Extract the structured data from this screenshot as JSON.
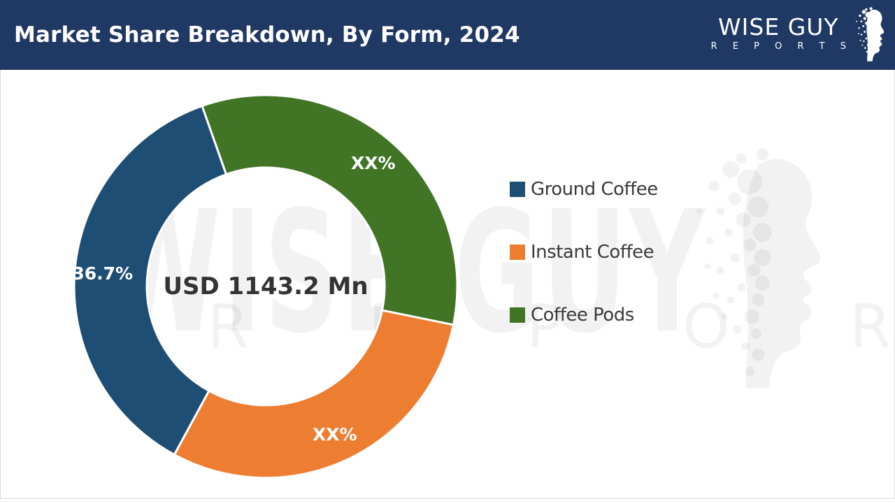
{
  "header": {
    "title": "Market Share Breakdown, By Form, 2024"
  },
  "logo": {
    "name": "Wise Guy Reports logo",
    "line1": "WISE GUY",
    "line2": "R E P O R T S",
    "face_icon": "dotted-face-profile-icon"
  },
  "watermark": {
    "line1": "WISE GUY",
    "line2": "REPORTS",
    "face_icon": "dotted-face-profile-icon"
  },
  "chart_data": {
    "type": "donut",
    "title": "Market Share Breakdown, By Form, 2024",
    "center_label": "USD 1143.2 Mn",
    "start_angle_deg": 109.4,
    "direction": "counterclockwise",
    "inner_radius_ratio": 0.62,
    "legend_position": "right",
    "segments": [
      {
        "label": "Ground Coffee",
        "display_label": "36.7%",
        "pct": 36.7,
        "color": "#1f4e74"
      },
      {
        "label": "Instant Coffee",
        "display_label": "XX%",
        "pct": 29.7,
        "color": "#ed7d31"
      },
      {
        "label": "Coffee Pods",
        "display_label": "XX%",
        "pct": 33.6,
        "color": "#427426"
      }
    ]
  },
  "colors": {
    "header_bg": "#1f3864",
    "page_bg": "#ffffff",
    "border": "#d9d9d9",
    "slice_label_text": "#ffffff",
    "center_label_text": "#333333",
    "legend_text": "#3a3a3a"
  }
}
